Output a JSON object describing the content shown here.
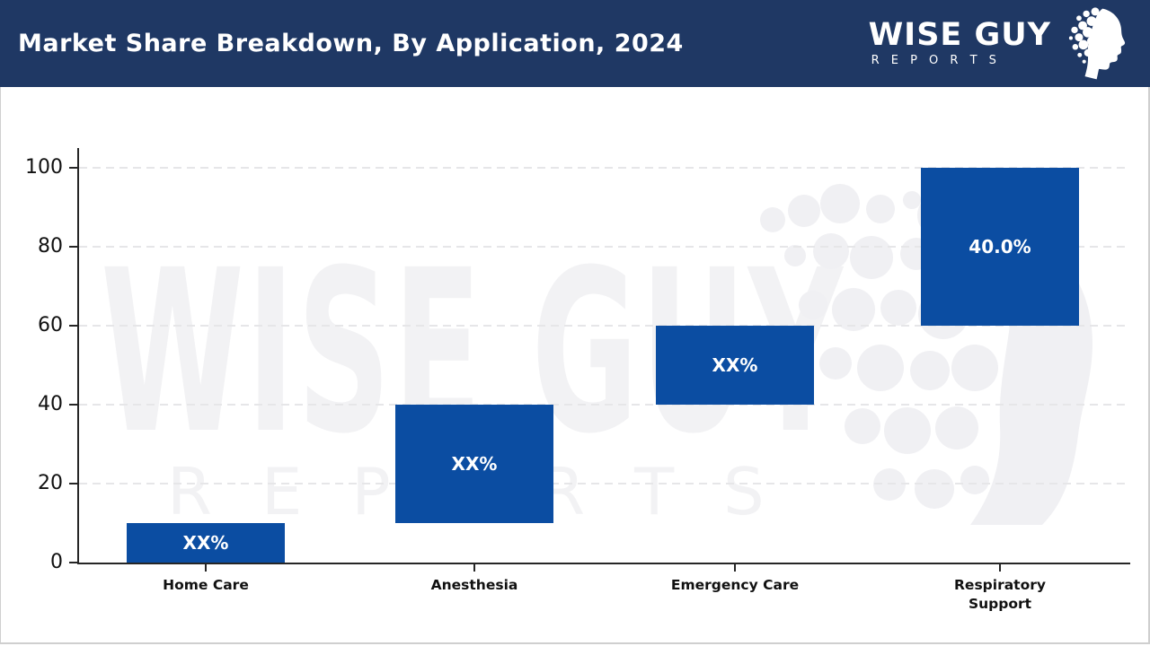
{
  "header": {
    "title": "Market Share Breakdown, By Application, 2024",
    "background_color": "#1f3864",
    "logo": {
      "wordmark": "WISE GUY",
      "subtext": "R E P O R T S",
      "face_icon": "dotted-profile-face"
    }
  },
  "watermark": {
    "wordmark": "WISE GUY",
    "subtext": "R E P O R T S"
  },
  "chart_data": {
    "type": "bar",
    "subtype": "waterfall",
    "title": "Market Share Breakdown, By Application, 2024",
    "categories": [
      "Home Care",
      "Anesthesia",
      "Emergency Care",
      "Respiratory Support"
    ],
    "segments": [
      {
        "category": "Home Care",
        "start": 0,
        "end": 10,
        "label": "XX%"
      },
      {
        "category": "Anesthesia",
        "start": 10,
        "end": 40,
        "label": "XX%"
      },
      {
        "category": "Emergency Care",
        "start": 40,
        "end": 60,
        "label": "XX%"
      },
      {
        "category": "Respiratory Support",
        "start": 60,
        "end": 100,
        "label": "40.0%"
      }
    ],
    "yticks": [
      0,
      20,
      40,
      60,
      80,
      100
    ],
    "ylim": [
      0,
      105
    ],
    "grid": "horizontal-dashed",
    "legend": "none",
    "xlabel": "",
    "ylabel": "",
    "bar_color": "#0b4da2",
    "bar_label_color": "#ffffff",
    "axis_color": "#262626",
    "tick_label_color": "#111111"
  }
}
